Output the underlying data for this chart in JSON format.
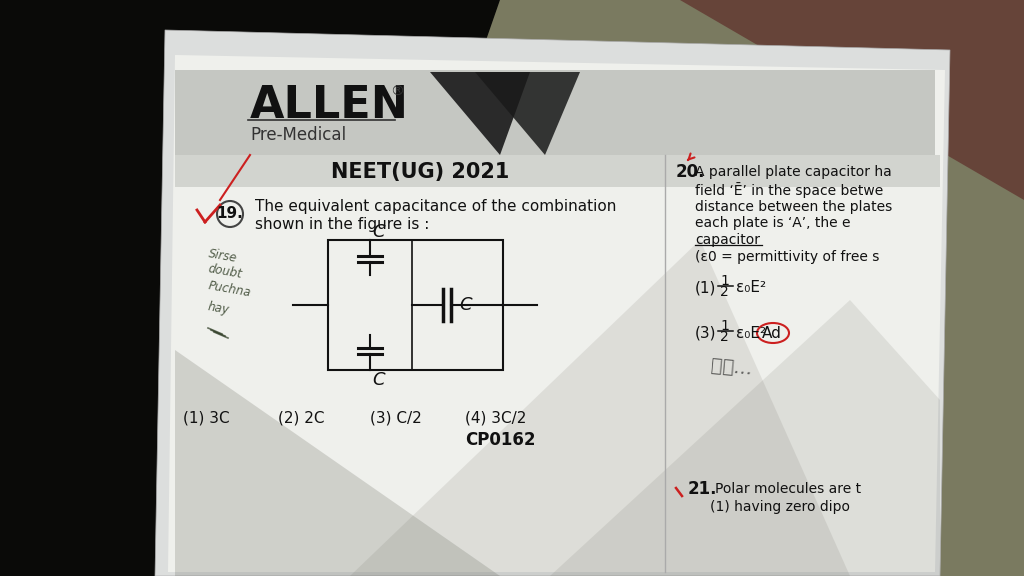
{
  "bg_left_color": "#111111",
  "bg_right_color": "#8a8a70",
  "paper_color": "#e8eae5",
  "paper_white": "#f0f2ed",
  "header_gray": "#c8cac5",
  "title_band_color": "#d0d2cd",
  "divider_color": "#b0b2ad",
  "text_dark": "#111111",
  "text_med": "#222222",
  "red_mark": "#cc2020",
  "shadow_dark": "#606050",
  "allen_text": "ALLEN",
  "pre_med": "Pre-Medical",
  "title": "NEET(UG) 2021",
  "q19_line1": "The equivalent capacitance of the combination",
  "q19_line2": "shown in the figure is :",
  "q19_opts": [
    "(1) 3C",
    "(2) 2C",
    "(3) C/2",
    "(4) 3C/2"
  ],
  "q19_code": "CP0162",
  "q20_num": "20.",
  "q20_lines": [
    "A parallel plate capacitor ha",
    "field ‘Ē’ in the space betwe",
    "distance between the plates",
    "each plate is ‘A’, the e",
    "capacitor",
    "(ε0 = permittivity of free s"
  ],
  "q21_lines": [
    "Polar molecules are t",
    "(1) having zero dipo"
  ]
}
